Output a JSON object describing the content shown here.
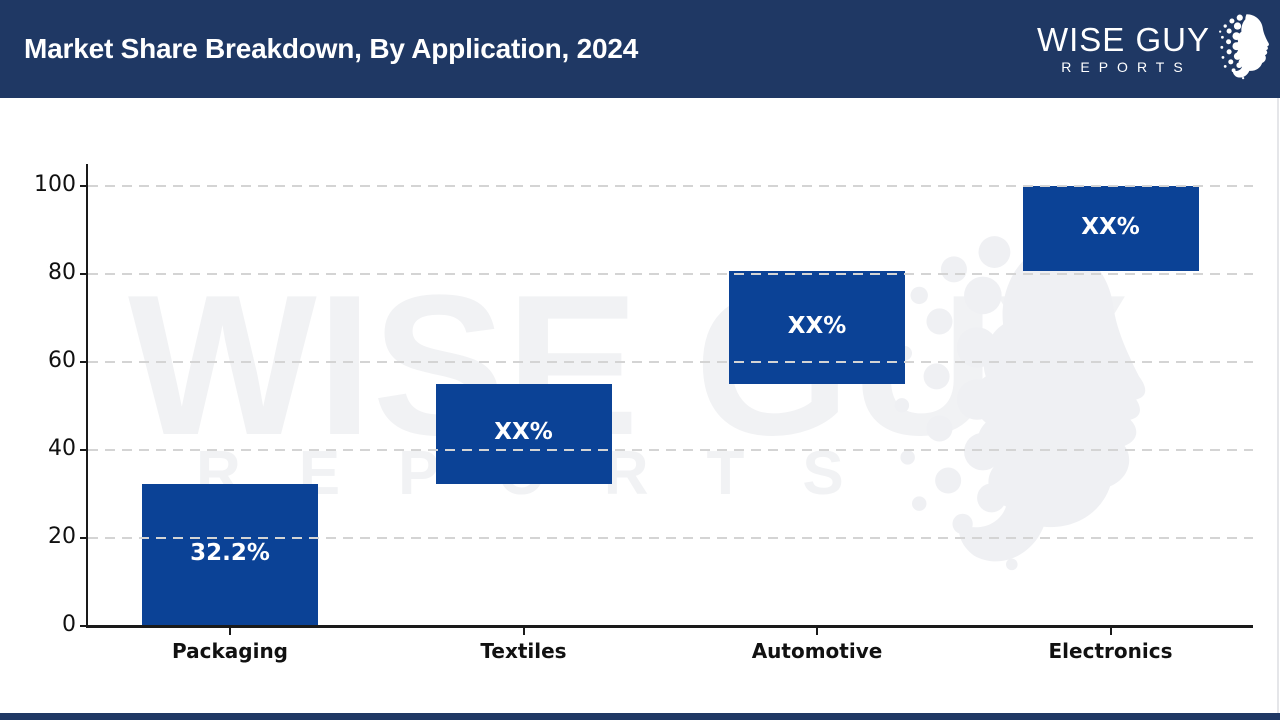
{
  "header": {
    "title": "Market Share Breakdown, By Application, 2024",
    "logo": {
      "line1": "WISE GUY",
      "line2": "REPORTS"
    }
  },
  "watermark": {
    "line1": "WISE GUY",
    "line2": "REPORTS"
  },
  "colors": {
    "header_navy": "#1F3864",
    "bar_blue": "#0B4296",
    "gridline_gray": "#D4D4D4",
    "axis_black": "#1A1A1A",
    "watermark_gray": "#F1F2F4",
    "bar_label_white": "#FFFFFF",
    "tick_text": "#111111"
  },
  "chart_data": {
    "type": "bar",
    "subtype": "waterfall",
    "title": "Market Share Breakdown, By Application, 2024",
    "categories": [
      "Packaging",
      "Textiles",
      "Automotive",
      "Electronics"
    ],
    "segments": [
      {
        "category": "Packaging",
        "start": 0,
        "end": 32.2,
        "value": 32.2,
        "label": "32.2%"
      },
      {
        "category": "Textiles",
        "start": 32.2,
        "end": 55.0,
        "value": 22.8,
        "label": "XX%"
      },
      {
        "category": "Automotive",
        "start": 55.0,
        "end": 80.6,
        "value": 25.6,
        "label": "XX%"
      },
      {
        "category": "Electronics",
        "start": 80.6,
        "end": 100.0,
        "value": 19.4,
        "label": "XX%"
      }
    ],
    "yticks": [
      0,
      20,
      40,
      60,
      80,
      100
    ],
    "ylim": [
      0,
      105
    ],
    "xlabel": "",
    "ylabel": "",
    "grid": "horizontal-dashed",
    "gridlines_above_bars": true,
    "legend": "none"
  }
}
